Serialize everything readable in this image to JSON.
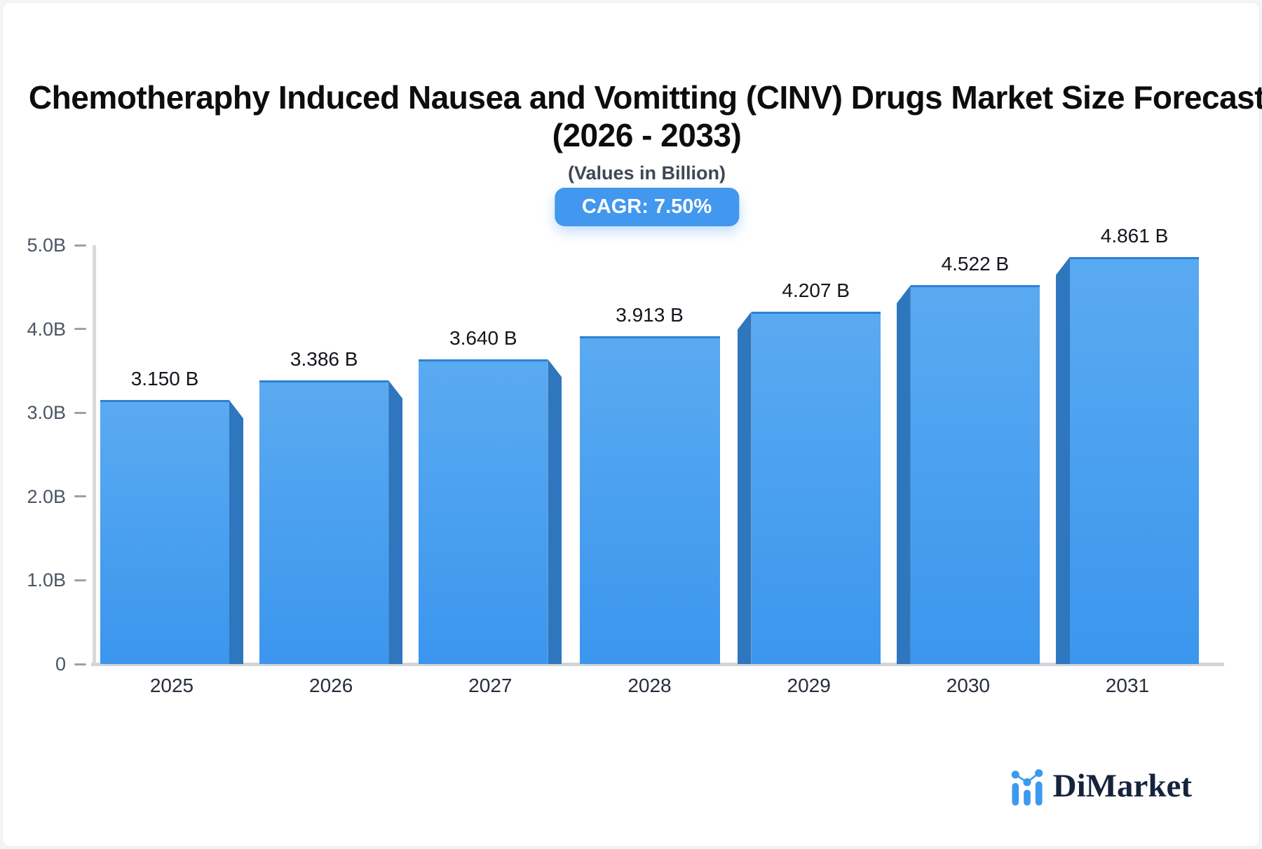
{
  "page": {
    "background": "#f3f4f6",
    "card_background": "#ffffff"
  },
  "chart_data": {
    "type": "bar",
    "title_line1": "Chemotheraphy Induced Nausea and Vomitting (CINV) Drugs Market Size Forecast",
    "title_line2": "(2026 - 2033)",
    "units_note": "(Values in Billion)",
    "cagr_badge": "CAGR: 7.50%",
    "categories": [
      "2025",
      "2026",
      "2027",
      "2028",
      "2029",
      "2030",
      "2031"
    ],
    "values": [
      3.15,
      3.386,
      3.64,
      3.913,
      4.207,
      4.522,
      4.861
    ],
    "bar_labels": [
      "3.150 B",
      "3.386 B",
      "3.640 B",
      "3.913 B",
      "4.207 B",
      "4.522 B",
      "4.861 B"
    ],
    "y_ticks": [
      "0",
      "1.0B",
      "2.0B",
      "3.0B",
      "4.0B",
      "5.0B"
    ],
    "ylim": [
      0,
      5
    ],
    "xlabel": "",
    "ylabel": "",
    "legend": "none",
    "grid": "off",
    "accent_color": "#4297ee",
    "bar_color_top": "#5aaaf1",
    "bar_color_bottom": "#3b96ee",
    "bar_side_color": "#2e76bd",
    "bar_top_edge_color": "#2f81d3",
    "axis_color": "#d7d9dc",
    "tick_label_color": "#4b5563"
  },
  "footer": {
    "logo_text": "DiMarket",
    "logo_icon": "bar-chart-logo-icon",
    "logo_icon_color": "#3b9af0",
    "logo_text_color": "#16233c"
  }
}
